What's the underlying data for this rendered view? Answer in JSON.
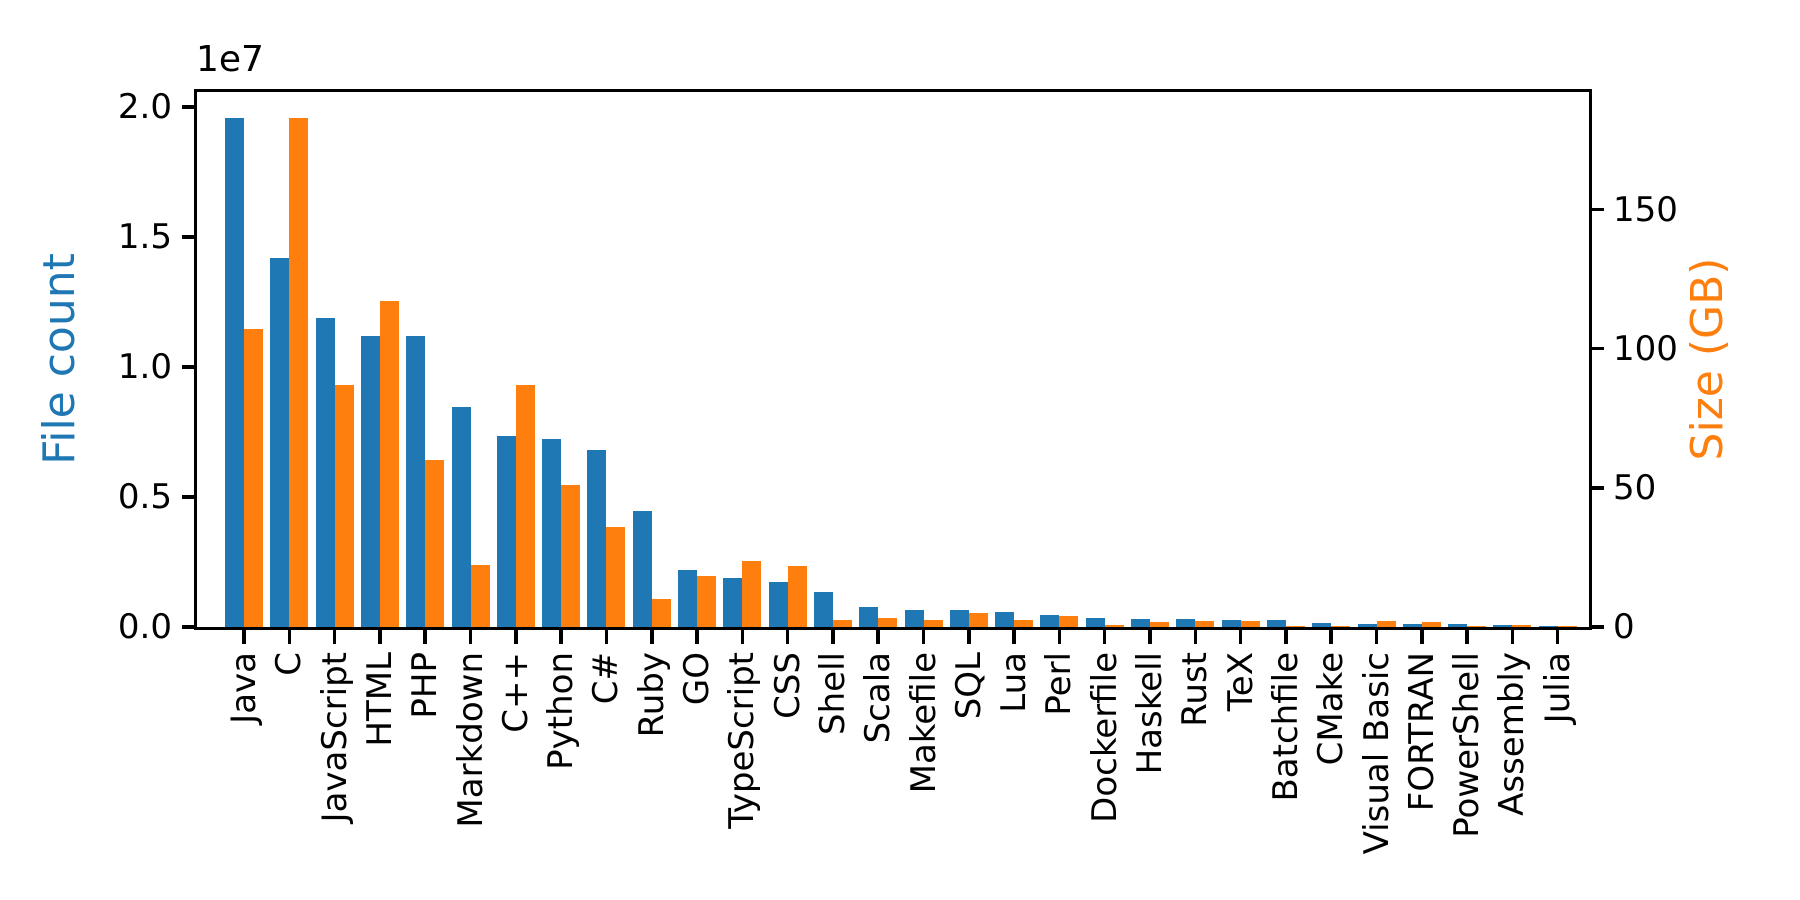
{
  "chart_data": {
    "type": "bar",
    "title": "",
    "grid": false,
    "legend": null,
    "categories": [
      "Java",
      "C",
      "JavaScript",
      "HTML",
      "PHP",
      "Markdown",
      "C++",
      "Python",
      "C#",
      "Ruby",
      "GO",
      "TypeScript",
      "CSS",
      "Shell",
      "Scala",
      "Makefile",
      "SQL",
      "Lua",
      "Perl",
      "Dockerfile",
      "Haskell",
      "Rust",
      "TeX",
      "Batchfile",
      "CMake",
      "Visual Basic",
      "FORTRAN",
      "PowerShell",
      "Assembly",
      "Julia"
    ],
    "series": [
      {
        "name": "File count",
        "axis": "left",
        "color": "#1f77b4",
        "values": [
          19600000,
          14200000,
          11900000,
          11200000,
          11200000,
          8450000,
          7330000,
          7250000,
          6800000,
          4450000,
          2210000,
          1870000,
          1720000,
          1360000,
          760000,
          650000,
          660000,
          580000,
          480000,
          340000,
          300000,
          310000,
          280000,
          270000,
          170000,
          130000,
          105000,
          100000,
          95000,
          50000
        ]
      },
      {
        "name": "Size (GB)",
        "axis": "right",
        "color": "#ff7f0e",
        "values": [
          107,
          183,
          87,
          117,
          60,
          22.3,
          87,
          51,
          36,
          10.2,
          18.3,
          23.9,
          22,
          2.7,
          3.3,
          2.4,
          4.9,
          2.4,
          3.8,
          0.7,
          1.9,
          2.2,
          2.3,
          0.3,
          0.4,
          2.2,
          1.9,
          0.3,
          0.6,
          0.3
        ]
      }
    ],
    "left_axis": {
      "label": "File count",
      "color": "#1f77b4",
      "offset_text": "1e7",
      "ticks": [
        0,
        5000000,
        10000000,
        15000000,
        20000000
      ],
      "tick_labels": [
        "0.0",
        "0.5",
        "1.0",
        "1.5",
        "2.0"
      ],
      "ylim": [
        0,
        20580000
      ]
    },
    "right_axis": {
      "label": "Size (GB)",
      "color": "#ff7f0e",
      "ticks": [
        0,
        50,
        100,
        150
      ],
      "tick_labels": [
        "0",
        "50",
        "100",
        "150"
      ],
      "ylim": [
        0,
        192.2
      ]
    },
    "x_axis": {
      "tick_label_rotation": 90
    }
  }
}
